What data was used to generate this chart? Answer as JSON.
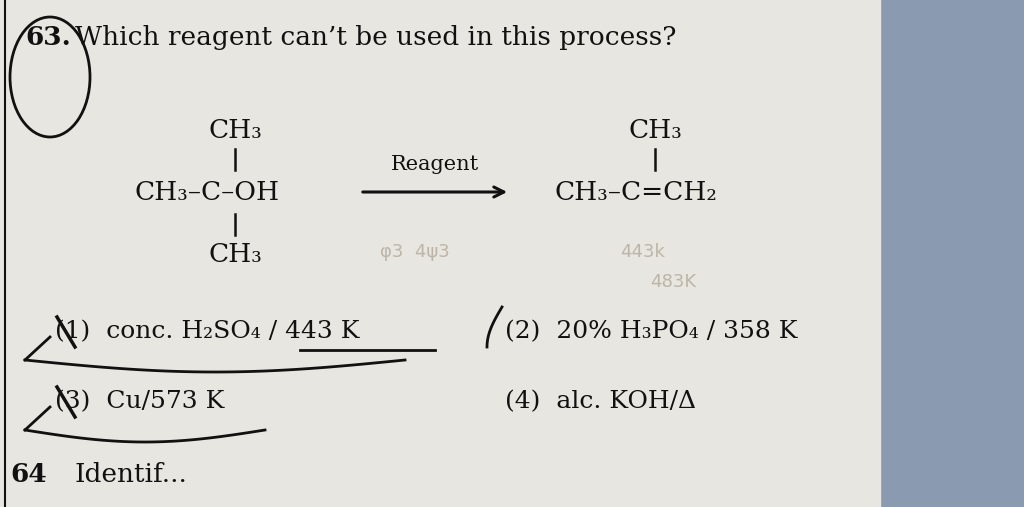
{
  "background_color": "#d0cdc8",
  "shadow_color": "#8a9ab0",
  "paper_color": "#e8e6e0",
  "text_color": "#111111",
  "question_number": "63.",
  "question_text": "Which reagent can’t be used in this process?",
  "arrow_label": "Reagent",
  "title_fontsize": 19,
  "chem_fontsize": 18,
  "opt_fontsize": 18,
  "option1": "(1)  conc. H₂SO₄ / 443 K",
  "option2": "(2)  20% H₃PO₄ / 358 K",
  "option3": "(3)  Cu/573 K",
  "option4": "(4)  alc. KOH/Δ",
  "handwritten_text1": "φ3  4ψ3   443k",
  "handwritten_text2": "          483K"
}
